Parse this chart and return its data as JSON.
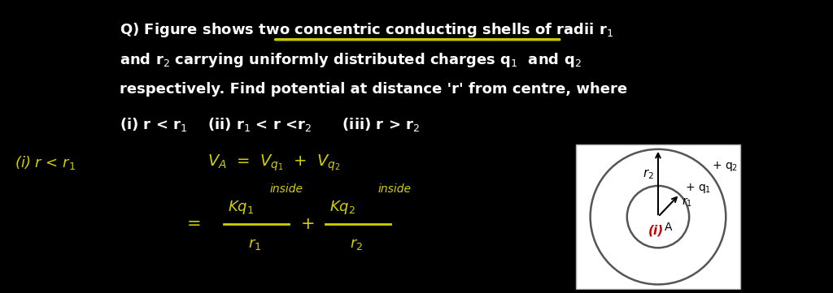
{
  "bg_color": "#000000",
  "header_bg": "#1a2a6c",
  "header_text_color": "#ffffff",
  "header_text": "Q) Figure shows two concentric conducting shells of radii r₁\nand r₂ carrying uniformly distributed charges q₁  and q₂\nrespectively. Find potential at distance ‘r’ from centre, where\n(i) r < r₁    (ii) r₁ < r <r₂      (iii) r > r₂",
  "underline_word": "conducting shells",
  "body_color": "#000000",
  "yellow_color": "#d4d000",
  "diagram_bg": "#ffffff",
  "diagram_border": "#888888",
  "inner_circle_color": "#555555",
  "outer_circle_color": "#555555",
  "arrow_color": "#222222",
  "label_r2": "r₂",
  "label_r1": "r₁",
  "label_q2": "+ q₂",
  "label_q1": "+ q₁",
  "label_i_color": "#cc0000",
  "label_i": "(i)",
  "label_A": "A",
  "eq_line1": "(i)  r < r₁     Vₐ = Vq₁   +  Vq₂",
  "eq_sub1a": "inside",
  "eq_sub1b": "inside",
  "eq_line2": "= Ξq₁   +   Ξq₂",
  "eq_denom1": "r₁",
  "eq_denom2": "r₂"
}
